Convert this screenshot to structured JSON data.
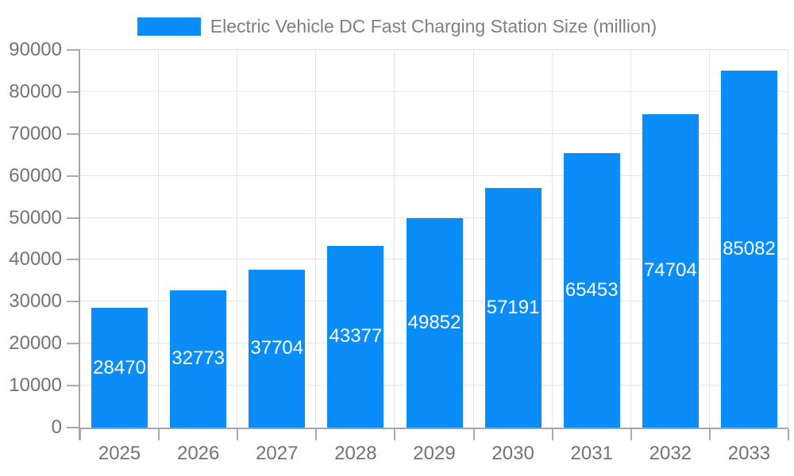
{
  "legend": {
    "label": "Electric Vehicle DC Fast Charging Station Size (million)"
  },
  "chart_data": {
    "type": "bar",
    "title": "Electric Vehicle DC Fast Charging Station Size (million)",
    "series_name": "Electric Vehicle DC Fast Charging Station Size (million)",
    "categories": [
      "2025",
      "2026",
      "2027",
      "2028",
      "2029",
      "2030",
      "2031",
      "2032",
      "2033"
    ],
    "values": [
      28470,
      32773,
      37704,
      43377,
      49852,
      57191,
      65453,
      74704,
      85082
    ],
    "xlabel": "",
    "ylabel": "",
    "ylim": [
      0,
      90000
    ],
    "yticks": [
      0,
      10000,
      20000,
      30000,
      40000,
      50000,
      60000,
      70000,
      80000,
      90000
    ],
    "grid": true,
    "legend_position": "top",
    "value_labels": "inside-center",
    "value_label_color": "#ffffff"
  },
  "colors": {
    "bar": "#0a8df8",
    "axis_line": "#a6a6a6",
    "gridline": "#e3e3e3",
    "tick": "#ababab",
    "axis_text": "#737373",
    "legend_text": "#7f7f7f",
    "background": "#ffffff"
  }
}
